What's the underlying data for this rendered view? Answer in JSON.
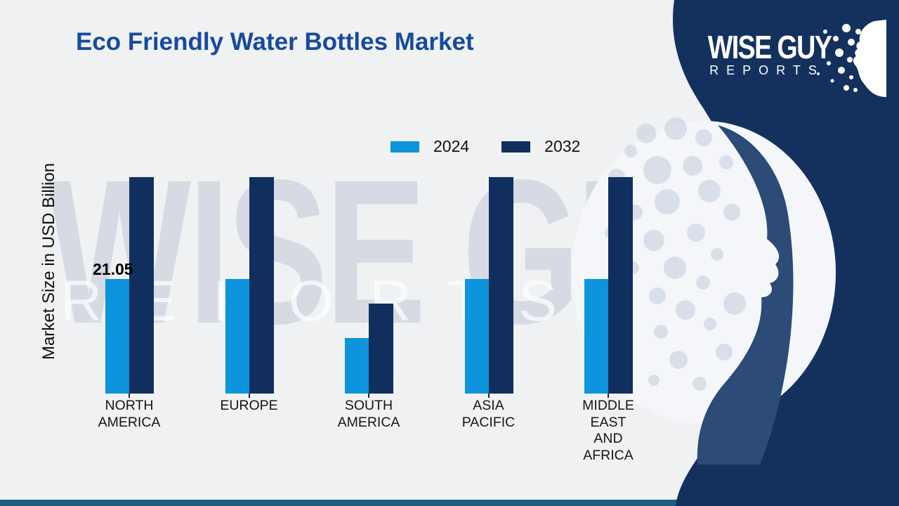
{
  "page": {
    "title": "Eco Friendly Water Bottles Market"
  },
  "logo": {
    "brand_top": "WISE GUY",
    "brand_bottom": "REPORTS"
  },
  "watermark": {
    "line1": "WISE GUY",
    "line2": "REPORTS"
  },
  "y_axis": {
    "label": "Market Size in USD Billion"
  },
  "chart_data": {
    "type": "bar",
    "title": "Eco Friendly Water Bottles Market",
    "xlabel": "",
    "ylabel": "Market Size in USD Billion",
    "categories": [
      "NORTH AMERICA",
      "EUROPE",
      "SOUTH AMERICA",
      "ASIA PACIFIC",
      "MIDDLE EAST AND AFRICA"
    ],
    "category_display": [
      "NORTH\nAMERICA",
      "EUROPE",
      "SOUTH\nAMERICA",
      "ASIA\nPACIFIC",
      "MIDDLE\nEAST\nAND\nAFRICA"
    ],
    "series": [
      {
        "name": "2024",
        "color": "#0d94dd",
        "values": [
          21.05,
          21.1,
          10.2,
          21.1,
          21.1
        ]
      },
      {
        "name": "2032",
        "color": "#112f5e",
        "values": [
          39.8,
          39.8,
          16.5,
          39.8,
          39.8
        ]
      }
    ],
    "data_labels": [
      {
        "series": "2024",
        "category": "NORTH AMERICA",
        "text": "21.05"
      }
    ],
    "ylim": [
      0,
      42
    ],
    "grid": false,
    "legend_position": "top-center",
    "note_only_labeled_value": "21.05"
  },
  "colors": {
    "background": "#f0f1f2",
    "bar_2024": "#0d94dd",
    "bar_2032": "#112f5e",
    "title_blue": "#174a9e",
    "brand_panel_navy": "#14315e",
    "footer_teal": "#1d5e7e"
  }
}
